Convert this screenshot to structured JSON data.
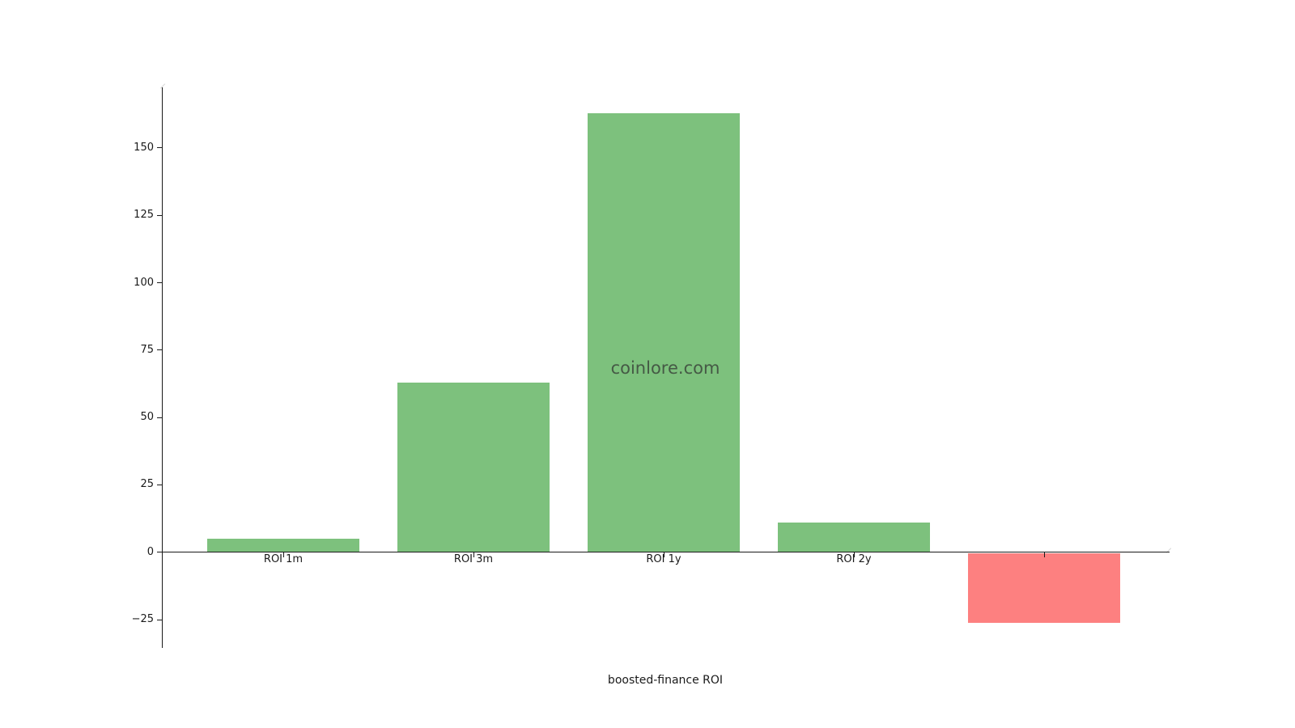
{
  "page": {
    "watermark": "coinlore.com",
    "footer_title": "boosted-finance ROI"
  },
  "chart_data": {
    "type": "bar",
    "title": "boosted-finance ROI",
    "categories": [
      "ROI 1m",
      "ROI 3m",
      "ROI 1y",
      "ROI 2y",
      ""
    ],
    "values": [
      5,
      63,
      163,
      11,
      -26
    ],
    "xlabel": "",
    "ylabel": "",
    "ylim": [
      -35.5,
      172.5
    ],
    "yticks": [
      -25,
      0,
      25,
      50,
      75,
      100,
      125,
      150
    ],
    "grid": false,
    "legend_position": "none",
    "positive_color": "#7dc17d",
    "negative_color": "#fd8080",
    "axis_color": "#1a1a1a",
    "tick_label_color": "#1a1a1a",
    "watermark": "coinlore.com",
    "watermark_color": "#3c473c"
  }
}
